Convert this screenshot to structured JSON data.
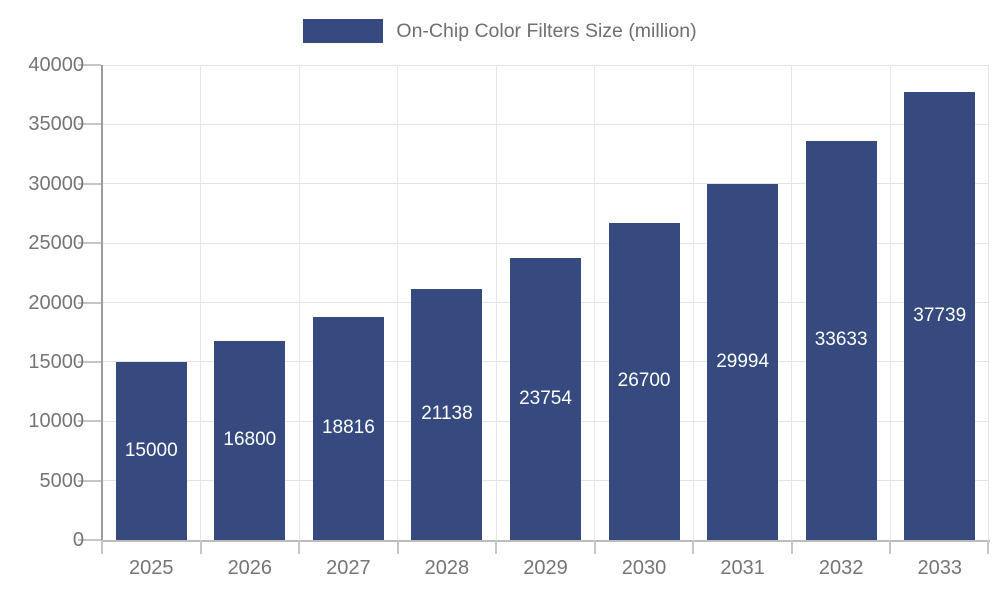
{
  "chart_data": {
    "type": "bar",
    "title": "",
    "legend": {
      "label": "On-Chip Color Filters Size (million)",
      "position": "top-center"
    },
    "categories": [
      "2025",
      "2026",
      "2027",
      "2028",
      "2029",
      "2030",
      "2031",
      "2032",
      "2033"
    ],
    "values": [
      15000,
      16800,
      18816,
      21138,
      23754,
      26700,
      29994,
      33633,
      37739
    ],
    "bar_value_labels": [
      "15000",
      "16800",
      "18816",
      "21138",
      "23754",
      "26700",
      "29994",
      "33633",
      "37739"
    ],
    "xlabel": "",
    "ylabel": "",
    "ylim": [
      0,
      40000
    ],
    "ytick_step": 5000,
    "ytick_labels": [
      "0",
      "5000",
      "10000",
      "15000",
      "20000",
      "25000",
      "30000",
      "35000",
      "40000"
    ],
    "grid": "on",
    "colors": {
      "bar": "#364a80",
      "bar_value_text": "#ffffff",
      "axis_text": "#757575",
      "legend_text": "#6f6f6f",
      "h_gridline": "#e4e4e4",
      "v_gridline": "#e6e6ec",
      "spine": "#9c9c9c",
      "axis_line": "#bcbcbc",
      "tick": "#c6c6c6",
      "background": "#ffffff"
    }
  }
}
